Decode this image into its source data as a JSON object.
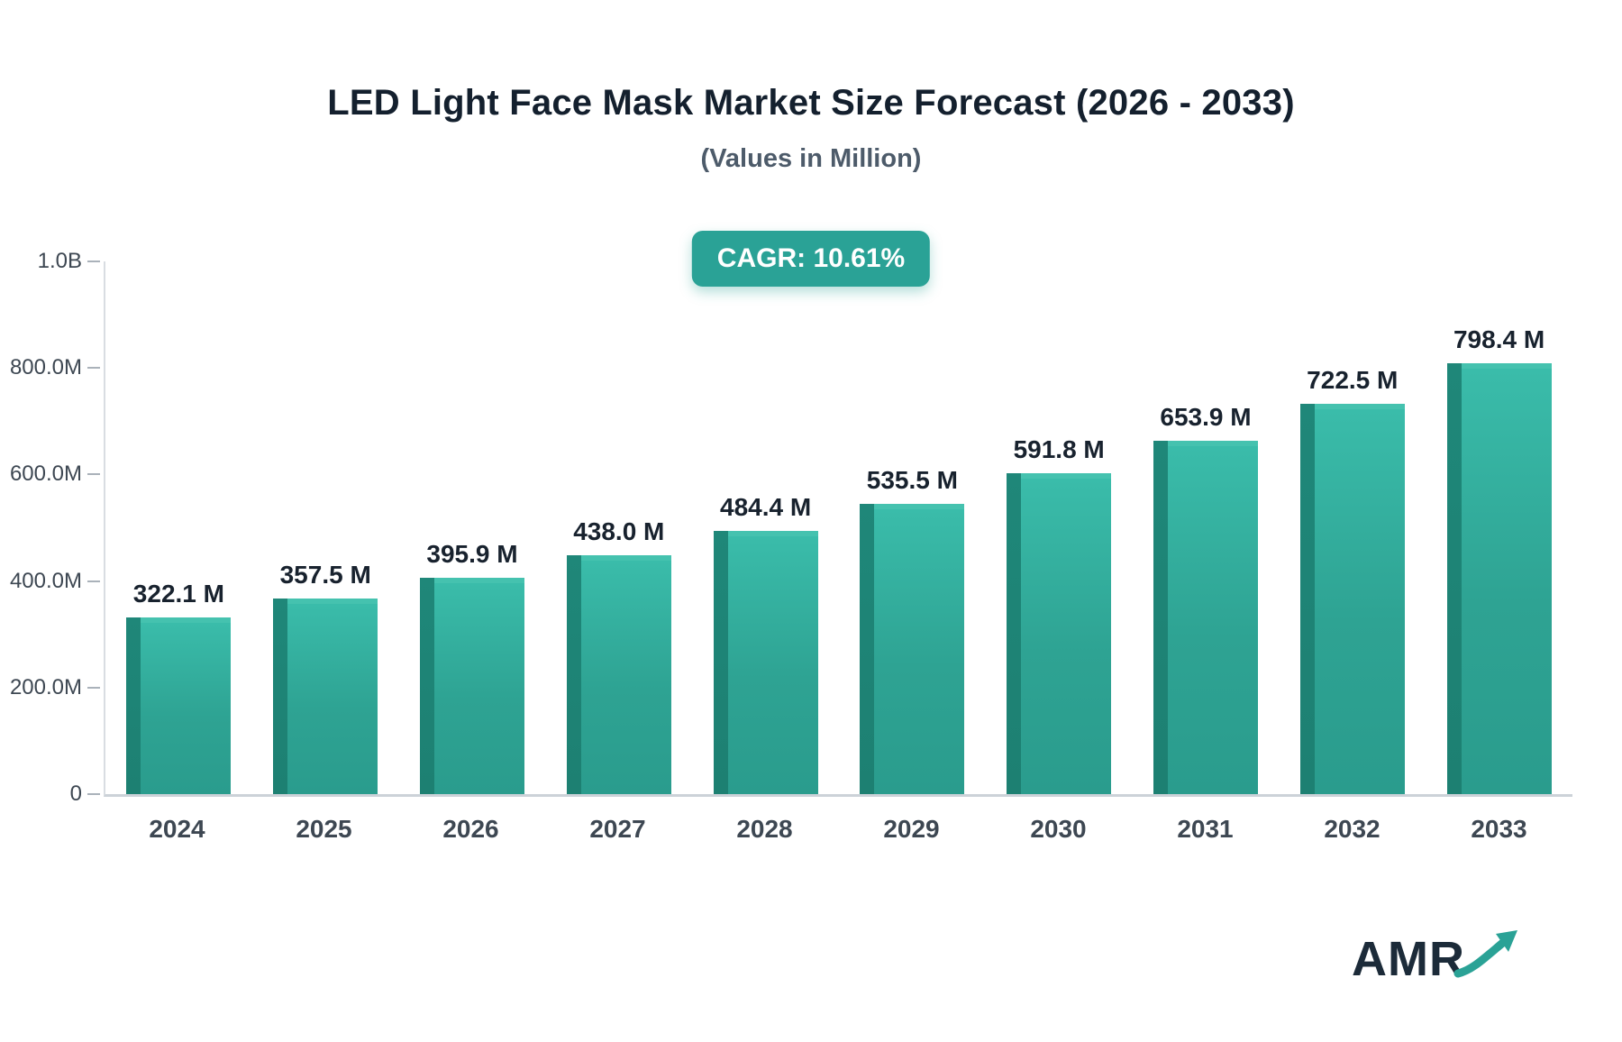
{
  "header": {
    "title": "LED Light Face Mask Market Size Forecast (2026 - 2033)",
    "subtitle": "(Values in Million)"
  },
  "badge": {
    "label": "CAGR: 10.61%"
  },
  "logo": {
    "text": "AMR"
  },
  "colors": {
    "badge_bg": "#2aa296",
    "bar": "#2ea393",
    "bar_dark": "#1d8072",
    "accent": "#2aa296"
  },
  "chart_data": {
    "type": "bar",
    "title": "LED Light Face Mask Market Size Forecast (2026 - 2033)",
    "subtitle": "(Values in Million)",
    "badge": "CAGR: 10.61%",
    "categories": [
      "2024",
      "2025",
      "2026",
      "2027",
      "2028",
      "2029",
      "2030",
      "2031",
      "2032",
      "2033"
    ],
    "values": [
      322.1,
      357.5,
      395.9,
      438.0,
      484.4,
      535.5,
      591.8,
      653.9,
      722.5,
      798.4
    ],
    "value_labels": [
      "322.1 M",
      "357.5 M",
      "395.9 M",
      "438.0 M",
      "484.4 M",
      "535.5 M",
      "591.8 M",
      "653.9 M",
      "722.5 M",
      "798.4 M"
    ],
    "xlabel": "",
    "ylabel": "",
    "ylim": [
      0,
      1000
    ],
    "yticks": [
      {
        "label": "1.0B",
        "value": 1000
      },
      {
        "label": "800.0M",
        "value": 800
      },
      {
        "label": "600.0M",
        "value": 600
      },
      {
        "label": "400.0M",
        "value": 400
      },
      {
        "label": "200.0M",
        "value": 200
      },
      {
        "label": "0",
        "value": 0
      }
    ],
    "grid": false,
    "legend": false
  }
}
